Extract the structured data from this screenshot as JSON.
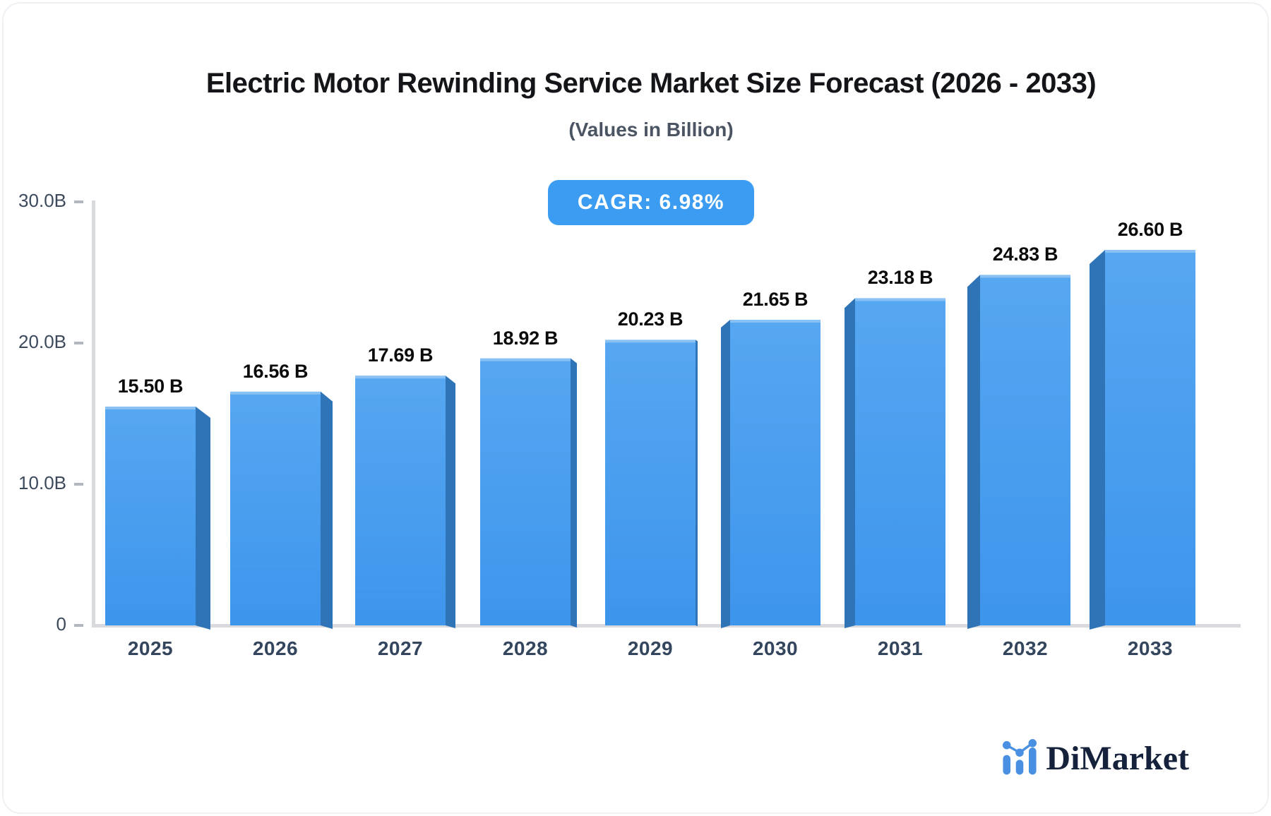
{
  "chart_data": {
    "type": "bar",
    "title": "Electric Motor Rewinding Service Market Size Forecast (2026 - 2033)",
    "subtitle": "(Values in Billion)",
    "cagr_badge": "CAGR: 6.98%",
    "categories": [
      "2025",
      "2026",
      "2027",
      "2028",
      "2029",
      "2030",
      "2031",
      "2032",
      "2033"
    ],
    "values": [
      15.5,
      16.56,
      17.69,
      18.92,
      20.23,
      21.65,
      23.18,
      24.83,
      26.6
    ],
    "value_labels": [
      "15.50 B",
      "16.56 B",
      "17.69 B",
      "18.92 B",
      "20.23 B",
      "21.65 B",
      "23.18 B",
      "24.83 B",
      "26.60 B"
    ],
    "unit": "Billion",
    "yticks": [
      {
        "label": "30.0B",
        "value": 30
      },
      {
        "label": "20.0B",
        "value": 20
      },
      {
        "label": "10.0B",
        "value": 10
      },
      {
        "label": "0",
        "value": 0
      }
    ],
    "ylim": [
      0,
      30
    ],
    "grid": false,
    "legend": "none",
    "bar_style": "3d-extruded",
    "colors": {
      "bar_face_top": "#57a7f1",
      "bar_face_bottom": "#3d95ec",
      "bar_face_highlight": "rgba(255,255,255,0.30)",
      "bar_side": "#2e74b7",
      "badge_bg": "#3b9cf2",
      "badge_text": "#ffffff",
      "axis_line": "#d8dade",
      "tick_text": "#3d4a5c",
      "value_label_text": "#0b0b0c",
      "category_text": "#34465e",
      "title_text": "#141519",
      "subtitle_text": "#4a5462"
    }
  },
  "footer": {
    "brand": "DiMarket",
    "logo_icon": "bar-chart-trend-icon",
    "logo_icon_color": "#4a90e2",
    "brand_text_color": "#16213b"
  }
}
